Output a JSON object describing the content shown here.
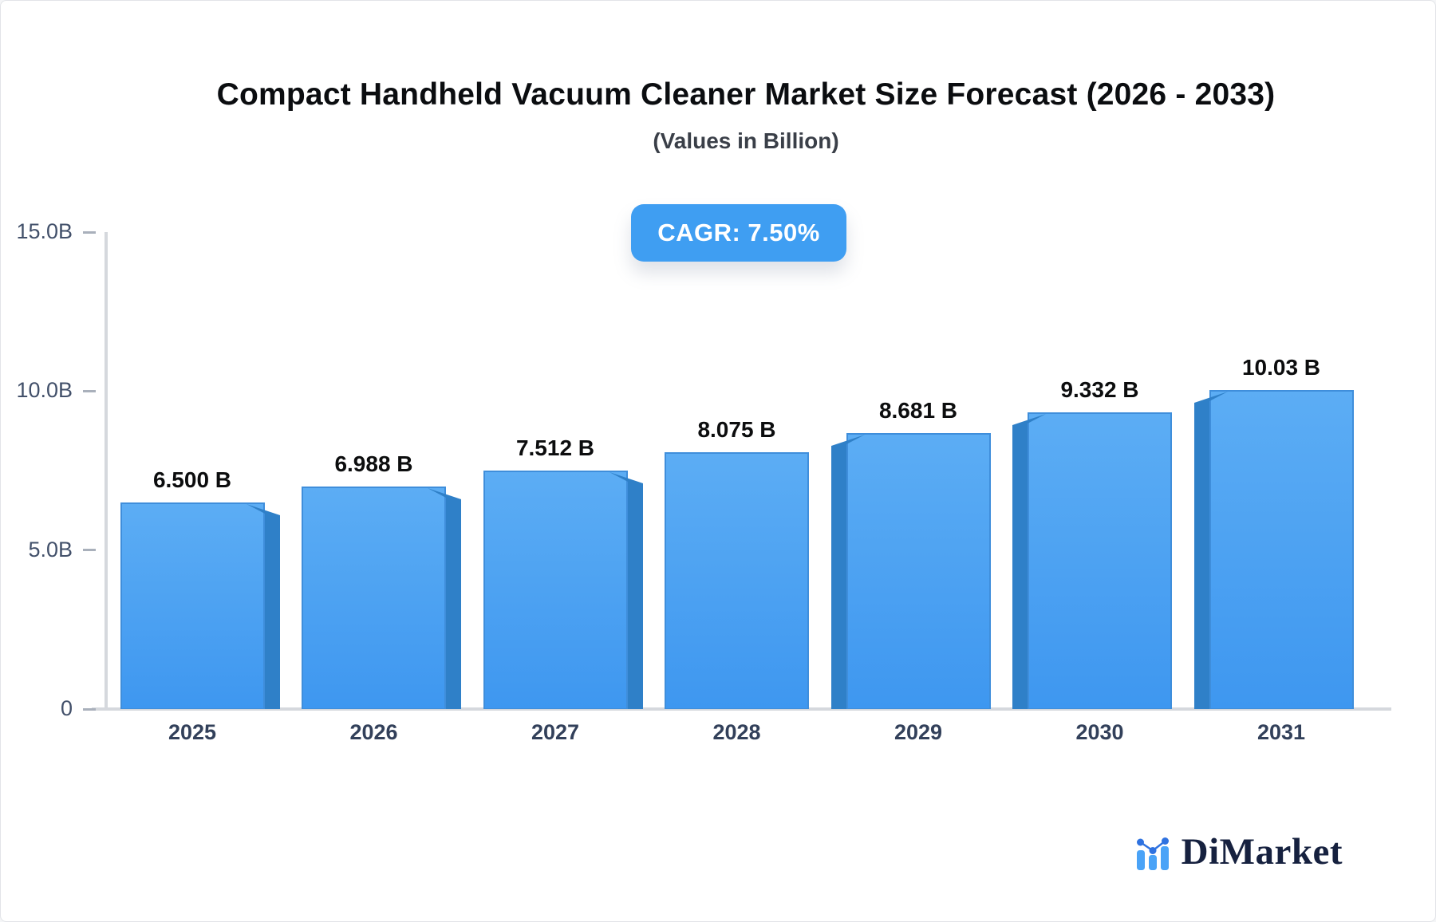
{
  "header": {
    "title": "Compact Handheld Vacuum Cleaner Market Size Forecast (2026 - 2033)",
    "subtitle": "(Values in Billion)"
  },
  "badge": {
    "label": "CAGR: 7.50%",
    "bg_color": "#3f9ef2",
    "text_color": "#ffffff"
  },
  "chart_data": {
    "type": "bar",
    "title": "Compact Handheld Vacuum Cleaner Market Size Forecast (2026 - 2033)",
    "subtitle": "(Values in Billion)",
    "categories": [
      "2025",
      "2026",
      "2027",
      "2028",
      "2029",
      "2030",
      "2031"
    ],
    "values": [
      6.5,
      6.988,
      7.512,
      8.075,
      8.681,
      9.332,
      10.03
    ],
    "bar_labels": [
      "6.500 B",
      "6.988 B",
      "7.512 B",
      "8.075 B",
      "8.681 B",
      "9.332 B",
      "10.03 B"
    ],
    "ylabel": "",
    "xlabel": "",
    "ylim": [
      0,
      15
    ],
    "y_ticks": [
      {
        "value": 0,
        "label": "0"
      },
      {
        "value": 5,
        "label": "5.0B"
      },
      {
        "value": 10,
        "label": "10.0B"
      },
      {
        "value": 15,
        "label": "15.0B"
      }
    ],
    "grid": false,
    "legend": null,
    "bar_style": "3d-perspective-toward-center",
    "colors": {
      "bar_gradient_top": "#5cadf4",
      "bar_gradient_bottom": "#3e97f0",
      "bar_edge": "#3f8edb",
      "bar_side": "#2f80c8",
      "axis_line": "#d5d8dd",
      "tick_mark": "#a9b0bb",
      "tick_text": "#42506a",
      "value_text": "#0c0d0e"
    }
  },
  "logo": {
    "brand": "DiMarket",
    "icon": "bar-chart-logo-icon",
    "text_color": "#16213f",
    "icon_bar_color": "#4aa3f7",
    "icon_accent_color": "#2f72e0"
  }
}
